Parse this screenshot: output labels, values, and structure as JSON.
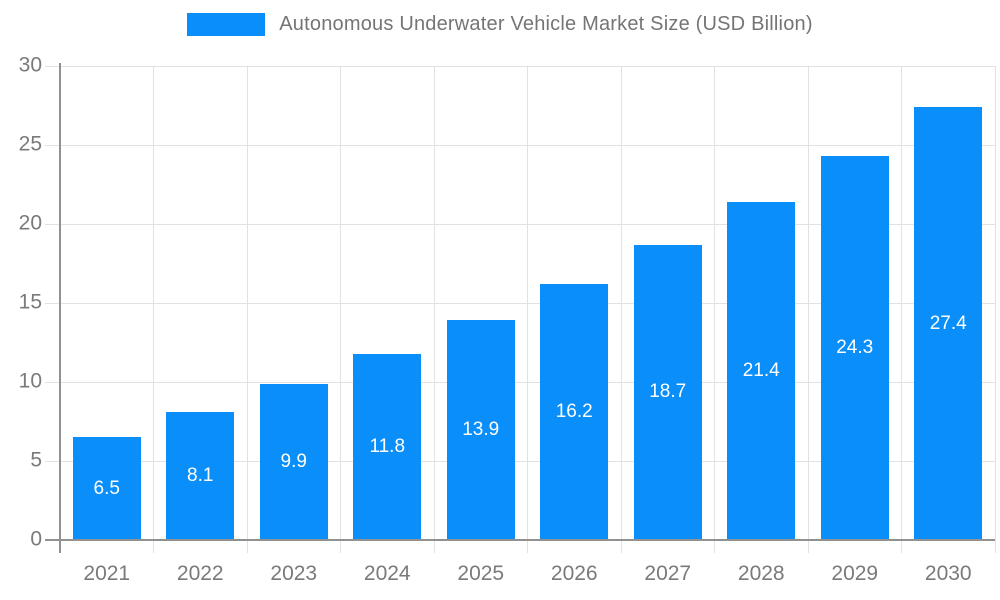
{
  "chart_data": {
    "type": "bar",
    "title": "Autonomous Underwater Vehicle Market Size (USD Billion)",
    "categories": [
      "2021",
      "2022",
      "2023",
      "2024",
      "2025",
      "2026",
      "2027",
      "2028",
      "2029",
      "2030"
    ],
    "values": [
      6.5,
      8.1,
      9.9,
      11.8,
      13.9,
      16.2,
      18.7,
      21.4,
      24.3,
      27.4
    ],
    "xlabel": "",
    "ylabel": "",
    "ylim": [
      0,
      30
    ],
    "yticks": [
      0,
      5,
      10,
      15,
      20,
      25,
      30
    ],
    "grid": true,
    "legend_position": "top-center",
    "bar_color": "#0a8efa",
    "value_label_color": "#ffffff",
    "axis_text_color": "#7a7a7a",
    "title_color": "#757575",
    "grid_color": "#e2e2e2",
    "axis_line_color": "#919191"
  }
}
